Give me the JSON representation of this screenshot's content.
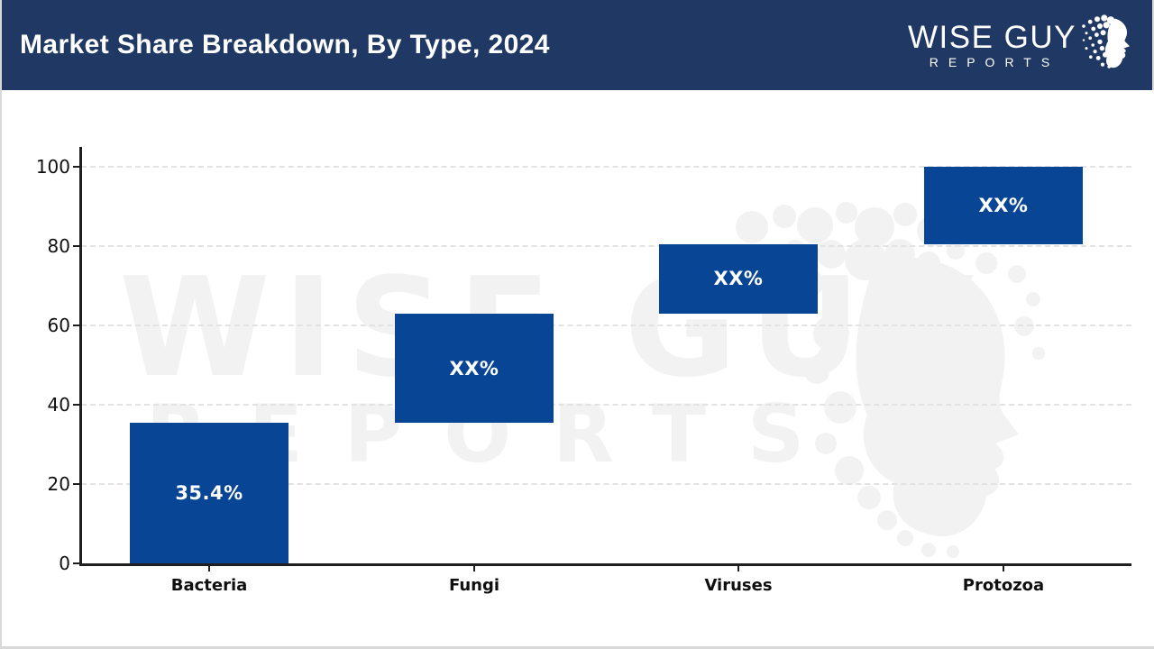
{
  "header": {
    "title": "Market Share Breakdown, By Type, 2024",
    "logo": {
      "line1": "WISE GUY",
      "line2": "REPORTS"
    }
  },
  "watermark": {
    "line1": "WISE GUY",
    "line2": "REPORTS"
  },
  "colors": {
    "header_bg": "#203864",
    "bar": "#084595",
    "grid": "#e2e2e2",
    "axis": "#1f1f1f",
    "tick_text": "#0f0f0f",
    "bar_label_text": "#ffffff",
    "watermark": "#f2f2f2"
  },
  "chart_data": {
    "type": "bar",
    "subtype": "waterfall",
    "title": "Market Share Breakdown, By Type, 2024",
    "categories": [
      "Bacteria",
      "Fungi",
      "Viruses",
      "Protozoa"
    ],
    "segments": [
      {
        "category": "Bacteria",
        "start": 0,
        "end": 35.4,
        "label": "35.4%"
      },
      {
        "category": "Fungi",
        "start": 35.4,
        "end": 63,
        "label": "XX%"
      },
      {
        "category": "Viruses",
        "start": 63,
        "end": 80.5,
        "label": "XX%"
      },
      {
        "category": "Protozoa",
        "start": 80.5,
        "end": 100,
        "label": "XX%"
      }
    ],
    "yticks": [
      0,
      20,
      40,
      60,
      80,
      100
    ],
    "ylim": [
      0,
      100
    ],
    "xlabel": "",
    "ylabel": "",
    "grid": "horizontal-dashed",
    "legend": "none"
  }
}
